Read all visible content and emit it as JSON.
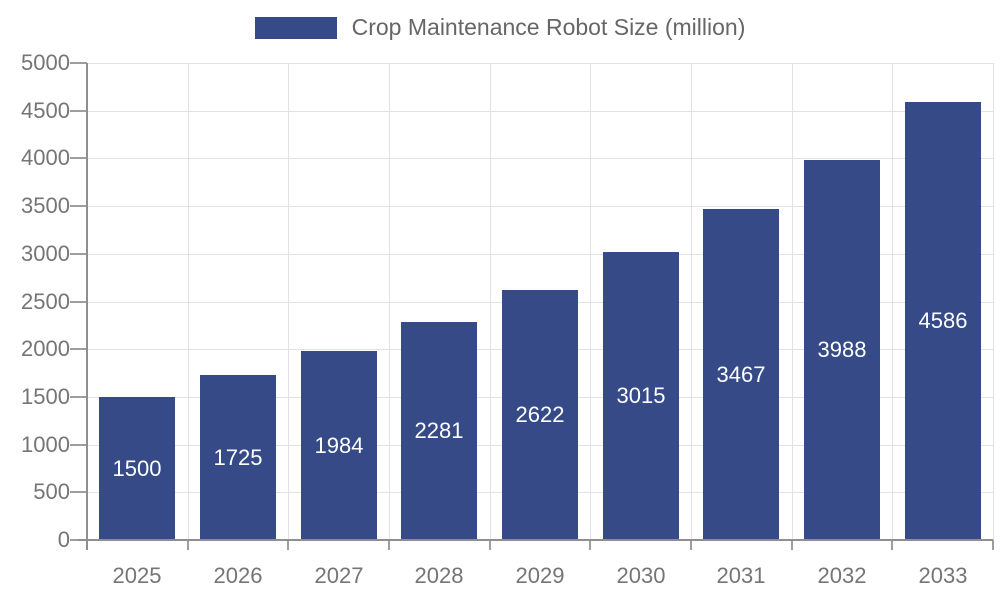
{
  "chart_data": {
    "type": "bar",
    "title": "Crop Maintenance Robot Size (million)",
    "categories": [
      "2025",
      "2026",
      "2027",
      "2028",
      "2029",
      "2030",
      "2031",
      "2032",
      "2033"
    ],
    "values": [
      1500,
      1725,
      1984,
      2281,
      2622,
      3015,
      3467,
      3988,
      4586
    ],
    "series_name": "Crop Maintenance Robot Size (million)",
    "xlabel": "",
    "ylabel": "",
    "ylim": [
      0,
      5000
    ],
    "ytick_step": 500,
    "yticks": [
      0,
      500,
      1000,
      1500,
      2000,
      2500,
      3000,
      3500,
      4000,
      4500,
      5000
    ],
    "grid": true,
    "legend_position": "top",
    "bar_labels_inside": true,
    "colors": {
      "bar": "#354a87",
      "bar_label": "#ffffff",
      "legend_text": "#666666",
      "axis_text": "#757575",
      "grid_line": "#e2e2e2",
      "axis_line": "#8f8f8f",
      "background": "#ffffff"
    }
  }
}
